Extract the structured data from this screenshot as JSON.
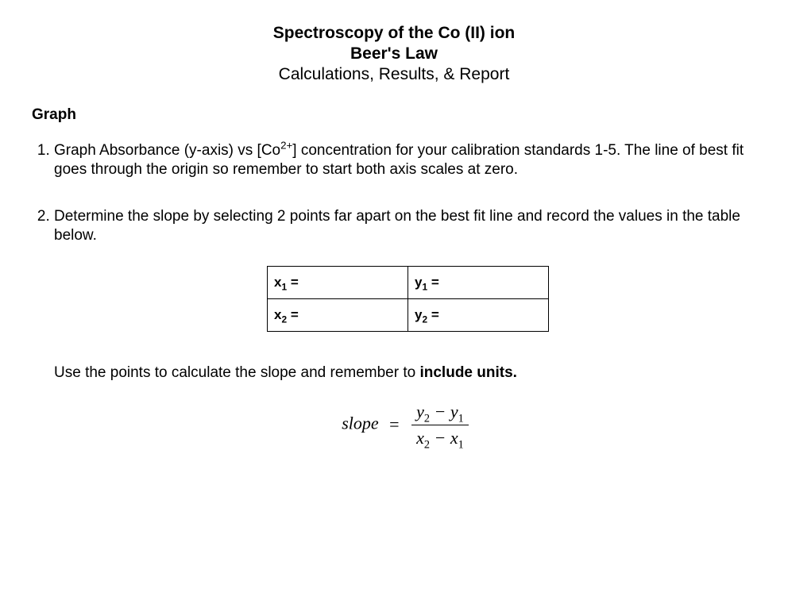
{
  "title": {
    "line1_a": "Spectroscopy of the Co (II) ion",
    "line2": "Beer's Law",
    "line3": "Calculations, Results, & Report"
  },
  "section_heading": "Graph",
  "items": {
    "one_a": "Graph Absorbance (y-axis) vs [Co",
    "one_sup": "2+",
    "one_b": "] concentration for your calibration standards 1-5.  The line of best fit goes through the origin so remember to start both axis scales at zero.",
    "two": "Determine the slope by selecting 2 points far apart on the best fit line and record the values in the table below."
  },
  "table": {
    "r1c1_var": "x",
    "r1c1_sub": "1",
    "r1c1_eq": " =",
    "r1c2_var": "y",
    "r1c2_sub": "1",
    "r1c2_eq": " =",
    "r2c1_var": "x",
    "r2c1_sub": "2",
    "r2c1_eq": " =",
    "r2c2_var": "y",
    "r2c2_sub": "2",
    "r2c2_eq": " ="
  },
  "use_points_a": "Use the points to calculate the slope and remember to ",
  "use_points_bold": "include units.",
  "formula": {
    "slope": "slope",
    "equals": "=",
    "num_a": "y",
    "num_a_sub": "2",
    "minus": " − ",
    "num_b": "y",
    "num_b_sub": "1",
    "den_a": "x",
    "den_a_sub": "2",
    "den_b": "x",
    "den_b_sub": "1"
  }
}
